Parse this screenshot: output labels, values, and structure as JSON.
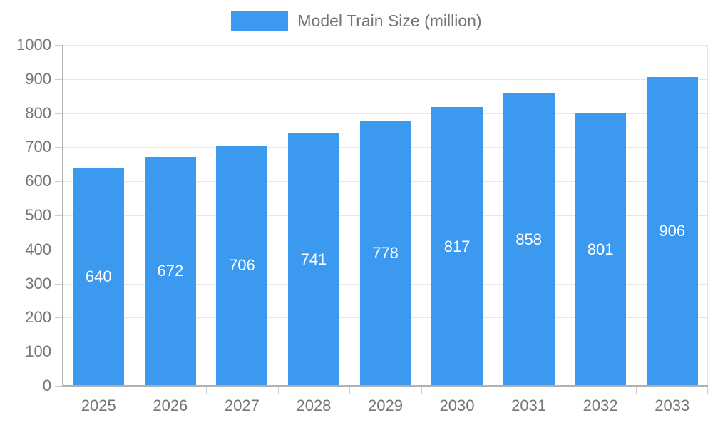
{
  "chart_data": {
    "type": "bar",
    "title": "Model Train Size (million)",
    "legend_position": "top-center",
    "categories": [
      "2025",
      "2026",
      "2027",
      "2028",
      "2029",
      "2030",
      "2031",
      "2032",
      "2033"
    ],
    "values": [
      640,
      672,
      706,
      741,
      778,
      817,
      858,
      801,
      906
    ],
    "series_name": "Model Train Size (million)",
    "xlabel": "",
    "ylabel": "",
    "ylim": [
      0,
      1000
    ],
    "y_tick_step": 100,
    "y_tick_labels": [
      "0",
      "100",
      "200",
      "300",
      "400",
      "500",
      "600",
      "700",
      "800",
      "900",
      "1000"
    ],
    "grid": true,
    "value_labels": "centered-inside-bars",
    "colors": {
      "bar": "#3B99F0",
      "value_label": "#FFFFFF",
      "axis_text": "#757575",
      "legend_text": "#757575",
      "grid_line": "#E6E6E6",
      "axis_line": "#B0B0B0",
      "tick_line": "#CCCCCC",
      "background": "#FFFFFF"
    }
  }
}
